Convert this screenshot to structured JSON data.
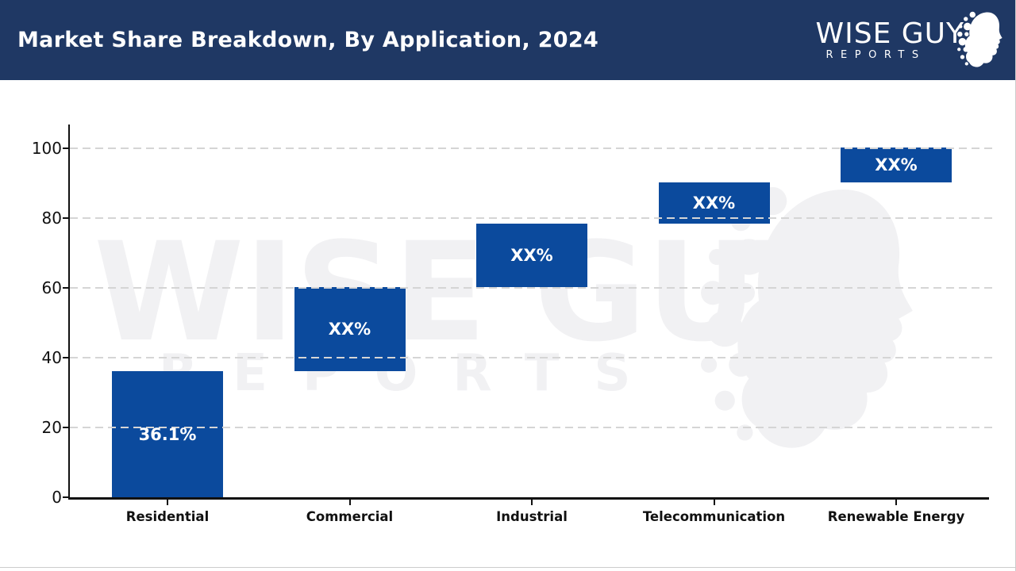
{
  "header": {
    "title": "Market Share Breakdown, By Application, 2024",
    "logo": {
      "line1": "WISE GUY",
      "line2": "REPORTS"
    }
  },
  "watermark": {
    "line1": "WISE GUY",
    "line2": "REPORTS"
  },
  "colors": {
    "header_bg": "#1f3864",
    "bar": "#0b4a9d",
    "bar_label": "#ffffff",
    "axis": "#111111",
    "grid": "#d5d5d5",
    "watermark": "#f1f1f3",
    "title_text": "#ffffff",
    "tick_text": "#111111"
  },
  "chart_data": {
    "type": "bar",
    "subtype": "waterfall",
    "title": "Market Share Breakdown, By Application, 2024",
    "categories": [
      "Residential",
      "Commercial",
      "Industrial",
      "Telecommunication",
      "Renewable Energy"
    ],
    "segments": [
      {
        "category": "Residential",
        "start": 0,
        "end": 36.1,
        "label": "36.1%"
      },
      {
        "category": "Commercial",
        "start": 36.1,
        "end": 60.2,
        "label": "XX%"
      },
      {
        "category": "Industrial",
        "start": 60.2,
        "end": 78.3,
        "label": "XX%"
      },
      {
        "category": "Telecommunication",
        "start": 78.3,
        "end": 90.2,
        "label": "XX%"
      },
      {
        "category": "Renewable Energy",
        "start": 90.2,
        "end": 100.3,
        "label": "XX%"
      }
    ],
    "xlabel": "",
    "ylabel": "",
    "y_ticks": [
      0,
      20,
      40,
      60,
      80,
      100
    ],
    "ylim": [
      0,
      107
    ],
    "grid": "horizontal-dashed",
    "legend": false
  }
}
